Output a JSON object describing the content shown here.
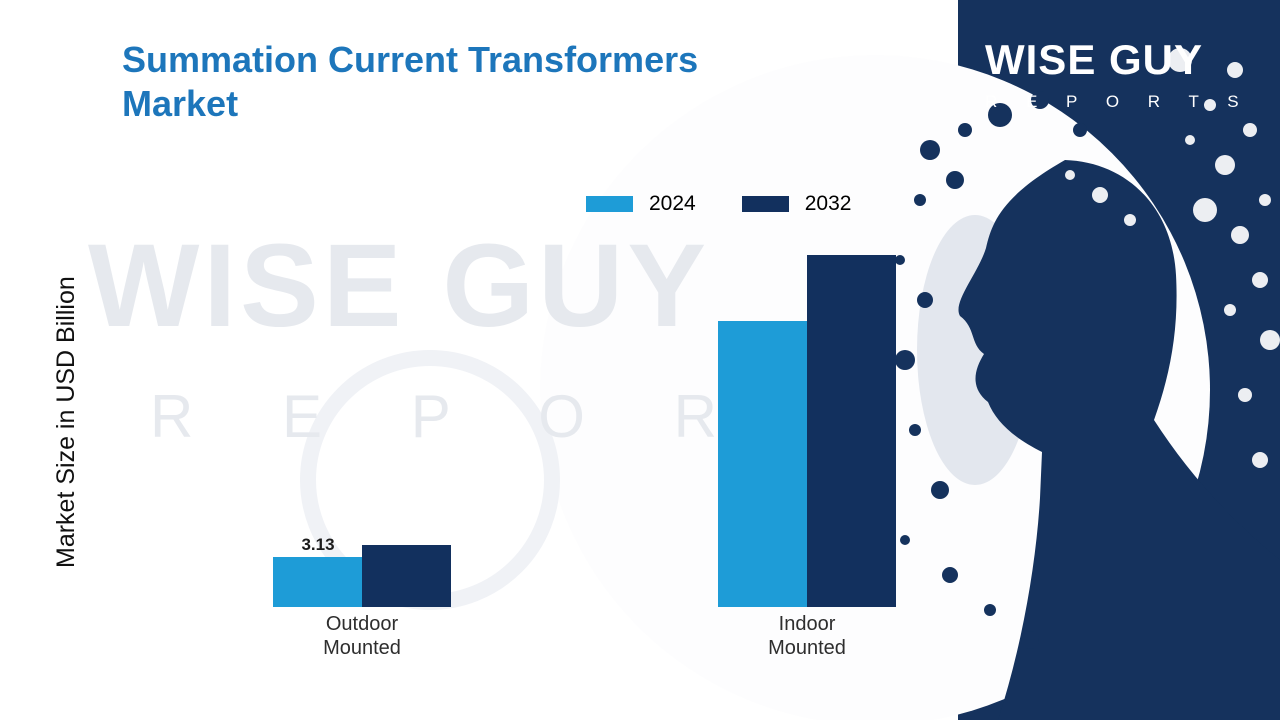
{
  "header": {
    "title": "Summation Current Transformers Market"
  },
  "brand": {
    "logo_line1": "WISE GUY",
    "logo_line2": "R E P O R T S"
  },
  "watermark": {
    "line1": "WISE GUY",
    "line2": "R E P O R T"
  },
  "chart_data": {
    "type": "bar",
    "title": "Summation Current Transformers Market",
    "ylabel": "Market Size in USD Billion",
    "xlabel": "",
    "categories": [
      "Outdoor Mounted",
      "Indoor Mounted"
    ],
    "series": [
      {
        "name": "2024",
        "color": "#1e9cd7",
        "values": [
          3.13,
          17.9
        ]
      },
      {
        "name": "2032",
        "color": "#12305e",
        "values": [
          3.85,
          22.0
        ]
      }
    ],
    "value_labels": [
      {
        "series": "2024",
        "category": "Outdoor Mounted",
        "text": "3.13"
      }
    ],
    "ylim": [
      0,
      24
    ],
    "grid": false,
    "legend_position": "top"
  },
  "colors": {
    "title_blue": "#1d76bb",
    "bar_2024": "#1e9cd7",
    "bar_2032": "#12305e",
    "panel_navy": "#15325d",
    "watermark_gray": "#e6e9ee"
  }
}
